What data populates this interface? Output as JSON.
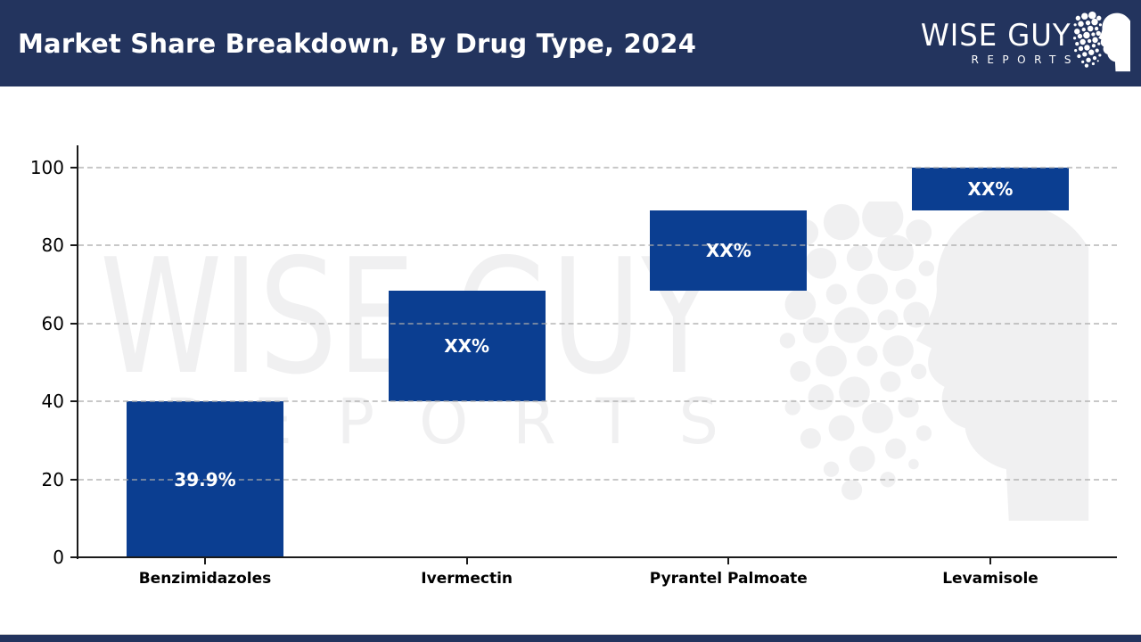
{
  "header": {
    "title": "Market Share Breakdown, By Drug Type, 2024",
    "logo": {
      "name": "WISE GUY",
      "tagline": "REPORTS"
    }
  },
  "watermark": {
    "line1": "WISE GUY",
    "line2": "REPORTS"
  },
  "chart_data": {
    "type": "bar",
    "subtype": "waterfall",
    "title": "Market Share Breakdown, By Drug Type, 2024",
    "categories": [
      "Benzimidazoles",
      "Ivermectin",
      "Pyrantel Palmoate",
      "Levamisole"
    ],
    "segments": [
      {
        "category": "Benzimidazoles",
        "start": 0,
        "end": 39.9,
        "label": "39.9%"
      },
      {
        "category": "Ivermectin",
        "start": 39.9,
        "end": 68.3,
        "label": "XX%"
      },
      {
        "category": "Pyrantel Palmoate",
        "start": 68.3,
        "end": 88.9,
        "label": "XX%"
      },
      {
        "category": "Levamisole",
        "start": 88.9,
        "end": 100,
        "label": "XX%"
      }
    ],
    "xlabel": "",
    "ylabel": "",
    "yticks": [
      0,
      20,
      40,
      60,
      80,
      100
    ],
    "ylim": [
      0,
      105.6
    ],
    "grid": "dashed-horizontal",
    "legend": "none",
    "bar_color": "#0b3e91"
  },
  "colors": {
    "header_bg": "#23345e",
    "footer_bg": "#23345e",
    "bar": "#0b3e91",
    "title_text": "#ffffff",
    "axis_text": "#000000",
    "gridline": "#c8c8c8",
    "watermark": "#f0f0f1"
  }
}
